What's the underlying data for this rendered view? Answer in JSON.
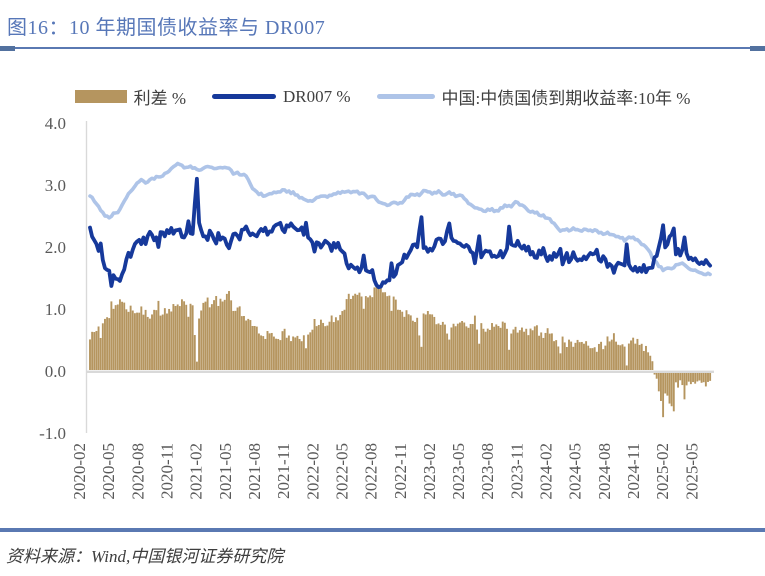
{
  "figure": {
    "title": "图16：10 年期国债收益率与 DR007",
    "source": "资料来源：Wind,中国银河证券研究院"
  },
  "legend": [
    {
      "label": "利差 %",
      "type": "bar",
      "color": "#b5955f"
    },
    {
      "label": "DR007 %",
      "type": "line",
      "color": "#16399b"
    },
    {
      "label": "中国:中债国债到期收益率:10年 %",
      "type": "line",
      "color": "#aec4e8"
    }
  ],
  "colors": {
    "title_blue": "#5777b8",
    "rule_blue": "#5a79b2",
    "bar_tan": "#b5955f",
    "dr007_navy": "#16399b",
    "y10_lightblue": "#aec4e8",
    "axis_gray": "#d9d9d9",
    "tick_text": "#595959"
  },
  "chart_data": {
    "type": "mixed-bar-line",
    "title": "10 年期国债收益率与 DR007",
    "start_month": "2020-02",
    "frequency": "monthly",
    "ylim": [
      -1.0,
      4.0
    ],
    "ytick_labels": [
      "4.0",
      "3.0",
      "2.0",
      "1.0",
      "0.0",
      "-1.0"
    ],
    "xtick_labels": [
      "2020-02",
      "2020-05",
      "2020-08",
      "2020-11",
      "2021-02",
      "2021-05",
      "2021-08",
      "2021-11",
      "2022-02",
      "2022-05",
      "2022-08",
      "2022-11",
      "2023-02",
      "2023-05",
      "2023-08",
      "2023-11",
      "2024-02",
      "2024-05",
      "2024-08",
      "2024-11",
      "2025-02",
      "2025-05"
    ],
    "grid": false,
    "legend_position": "top",
    "series": [
      {
        "name": "利差 %",
        "type": "bar",
        "values": [
          0.6,
          0.83,
          1.02,
          1.18,
          0.95,
          0.85,
          0.8,
          0.9,
          0.88,
          0.98,
          1.1,
          0.75,
          1.0,
          1.05,
          1.08,
          0.95,
          0.9,
          0.74,
          0.65,
          0.63,
          0.75,
          0.7,
          0.62,
          0.6,
          0.7,
          0.7,
          0.94,
          1.1,
          1.05,
          1.16,
          1.2,
          1.1,
          1.0,
          1.0,
          0.86,
          0.9,
          0.8,
          0.77,
          0.77,
          0.77,
          0.75,
          0.8,
          0.73,
          0.7,
          0.75,
          0.72,
          0.75,
          0.65,
          0.52,
          0.45,
          0.45,
          0.45,
          0.4,
          0.4,
          0.4,
          0.3,
          0.42,
          0.35,
          0.1,
          -0.45,
          -0.4,
          -0.05,
          -0.1,
          0.03,
          0.05
        ]
      },
      {
        "name": "DR007 %",
        "type": "line",
        "values": [
          2.25,
          1.85,
          1.5,
          1.42,
          1.9,
          2.1,
          2.2,
          2.2,
          2.3,
          2.3,
          2.1,
          2.4,
          2.25,
          2.15,
          2.1,
          2.15,
          2.2,
          2.18,
          2.2,
          2.25,
          2.2,
          2.2,
          2.2,
          2.12,
          2.1,
          2.1,
          1.9,
          1.7,
          1.75,
          1.6,
          1.44,
          1.58,
          1.68,
          1.83,
          2.0,
          2.0,
          2.1,
          2.09,
          2.05,
          1.95,
          1.91,
          1.84,
          1.85,
          1.96,
          1.95,
          1.94,
          1.83,
          1.85,
          1.88,
          1.85,
          1.83,
          1.85,
          1.85,
          1.78,
          1.76,
          1.78,
          1.7,
          1.7,
          1.68,
          2.09,
          2.1,
          1.89,
          1.76,
          1.65,
          1.6
        ],
        "spikes": [
          {
            "month_index": 11,
            "value": 3.1
          },
          {
            "month_index": 34,
            "value": 2.48
          },
          {
            "month_index": 37,
            "value": 2.38
          },
          {
            "month_index": 59,
            "value": 2.35
          },
          {
            "month_index": 60,
            "value": 2.3
          }
        ]
      },
      {
        "name": "中国:中债国债到期收益率:10年 %",
        "type": "line",
        "values": [
          2.85,
          2.68,
          2.52,
          2.6,
          2.85,
          2.95,
          3.0,
          3.1,
          3.18,
          3.28,
          3.2,
          3.15,
          3.25,
          3.2,
          3.18,
          3.1,
          3.1,
          2.92,
          2.85,
          2.88,
          2.95,
          2.9,
          2.82,
          2.72,
          2.8,
          2.8,
          2.84,
          2.8,
          2.8,
          2.76,
          2.64,
          2.68,
          2.68,
          2.83,
          2.86,
          2.9,
          2.9,
          2.86,
          2.82,
          2.72,
          2.66,
          2.64,
          2.58,
          2.66,
          2.7,
          2.66,
          2.58,
          2.5,
          2.4,
          2.3,
          2.28,
          2.3,
          2.25,
          2.18,
          2.16,
          2.08,
          2.12,
          2.05,
          1.78,
          1.64,
          1.7,
          1.84,
          1.66,
          1.68,
          1.65
        ]
      }
    ],
    "volatility_hint": {
      "dr007": 0.12,
      "y10": 0.04
    }
  }
}
